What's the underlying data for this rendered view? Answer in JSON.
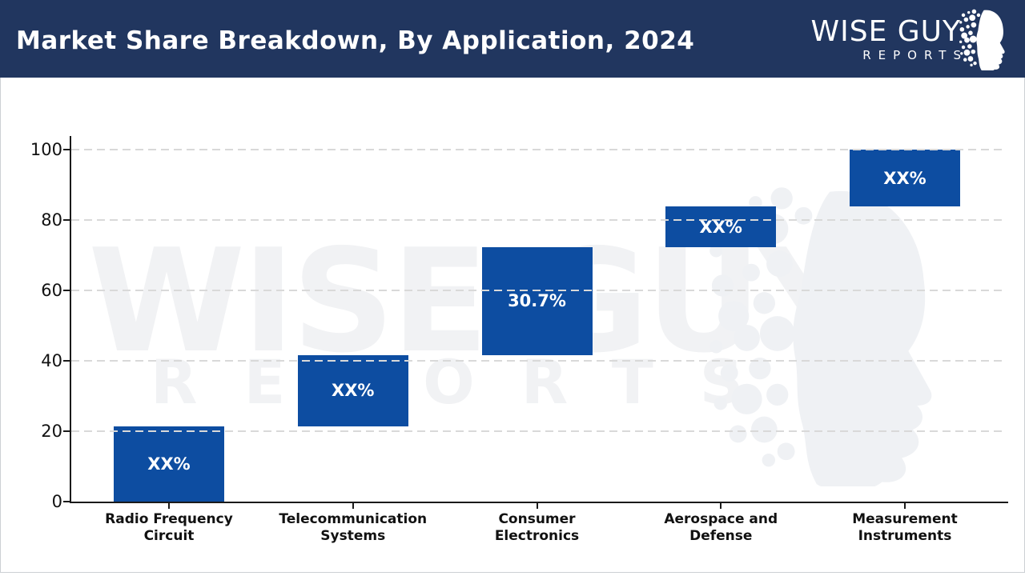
{
  "header": {
    "title": "Market Share Breakdown, By Application, 2024",
    "logo": {
      "line1": "WISE GUY",
      "line2": "REPORTS"
    }
  },
  "watermark": {
    "line1": "WISE GUY",
    "line2": "REPORTS"
  },
  "colors": {
    "header_bg": "#21365f",
    "bar": "#0d4da1",
    "grid": "#d9d9d9",
    "axis": "#1a1a1a",
    "watermark": "#f1f2f4",
    "bar_label": "#ffffff"
  },
  "chart_data": {
    "type": "bar",
    "subtype": "waterfall",
    "title": "Market Share Breakdown, By Application, 2024",
    "xlabel": "",
    "ylabel": "",
    "ylim": [
      0,
      105
    ],
    "yticks": [
      0,
      20,
      40,
      60,
      80,
      100
    ],
    "grid": "horizontal-dashed",
    "legend": "none",
    "categories": [
      "Radio Frequency\nCircuit",
      "Telecommunication\nSystems",
      "Consumer\nElectronics",
      "Aerospace and\nDefense",
      "Measurement\nInstruments"
    ],
    "segments": [
      {
        "category": "Radio Frequency Circuit",
        "start": 0,
        "end": 21.4,
        "value": 21.4,
        "label": "XX%"
      },
      {
        "category": "Telecommunication Systems",
        "start": 21.4,
        "end": 41.6,
        "value": 20.2,
        "label": "XX%"
      },
      {
        "category": "Consumer Electronics",
        "start": 41.6,
        "end": 72.3,
        "value": 30.7,
        "label": "30.7%"
      },
      {
        "category": "Aerospace and Defense",
        "start": 72.3,
        "end": 83.8,
        "value": 11.5,
        "label": "XX%"
      },
      {
        "category": "Measurement Instruments",
        "start": 83.8,
        "end": 100,
        "value": 16.2,
        "label": "XX%"
      }
    ]
  }
}
